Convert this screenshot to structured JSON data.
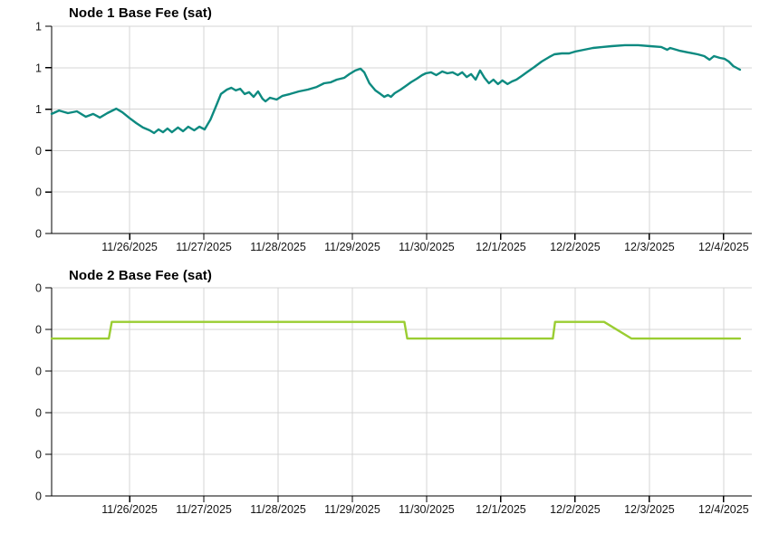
{
  "page": {
    "background": "#ffffff"
  },
  "colors": {
    "axis": "#000000",
    "grid": "#d4d4d4",
    "node1_line": "#0d8a80",
    "node2_line": "#9acd32"
  },
  "chart_data": [
    {
      "type": "line",
      "title": "Node 1 Base Fee (sat)",
      "legend": "none",
      "grid": "on",
      "x_axis": {
        "range": [
          -0.05,
          9.38
        ],
        "unit": "days (0 = 11/25/2025)",
        "tick_positions": [
          1,
          2,
          3,
          4,
          5,
          6,
          7,
          8,
          9
        ],
        "tick_labels": [
          "11/26/2025",
          "11/27/2025",
          "11/28/2025",
          "11/29/2025",
          "11/30/2025",
          "12/1/2025",
          "12/2/2025",
          "12/3/2025",
          "12/4/2025"
        ]
      },
      "y_axis": {
        "range": [
          0,
          1.25
        ],
        "tick_values": [
          0,
          0.25,
          0.5,
          0.75,
          1.0,
          1.25
        ],
        "tick_labels": [
          "0",
          "0",
          "0",
          "1",
          "1",
          "1"
        ]
      },
      "series": [
        {
          "name": "Node 1 Base Fee",
          "color": "#0d8a80",
          "points": [
            [
              -0.05,
              0.721
            ],
            [
              0.05,
              0.742
            ],
            [
              0.17,
              0.726
            ],
            [
              0.29,
              0.737
            ],
            [
              0.41,
              0.704
            ],
            [
              0.51,
              0.721
            ],
            [
              0.6,
              0.699
            ],
            [
              0.7,
              0.726
            ],
            [
              0.82,
              0.753
            ],
            [
              0.9,
              0.732
            ],
            [
              0.99,
              0.699
            ],
            [
              1.09,
              0.666
            ],
            [
              1.18,
              0.639
            ],
            [
              1.27,
              0.622
            ],
            [
              1.33,
              0.606
            ],
            [
              1.39,
              0.628
            ],
            [
              1.45,
              0.611
            ],
            [
              1.51,
              0.633
            ],
            [
              1.57,
              0.611
            ],
            [
              1.65,
              0.639
            ],
            [
              1.72,
              0.617
            ],
            [
              1.79,
              0.644
            ],
            [
              1.87,
              0.622
            ],
            [
              1.94,
              0.644
            ],
            [
              2.01,
              0.628
            ],
            [
              2.09,
              0.688
            ],
            [
              2.16,
              0.764
            ],
            [
              2.23,
              0.841
            ],
            [
              2.31,
              0.868
            ],
            [
              2.37,
              0.879
            ],
            [
              2.43,
              0.863
            ],
            [
              2.49,
              0.873
            ],
            [
              2.55,
              0.841
            ],
            [
              2.61,
              0.852
            ],
            [
              2.67,
              0.824
            ],
            [
              2.73,
              0.857
            ],
            [
              2.79,
              0.813
            ],
            [
              2.83,
              0.797
            ],
            [
              2.89,
              0.819
            ],
            [
              2.98,
              0.808
            ],
            [
              3.06,
              0.83
            ],
            [
              3.16,
              0.841
            ],
            [
              3.28,
              0.857
            ],
            [
              3.4,
              0.868
            ],
            [
              3.52,
              0.884
            ],
            [
              3.62,
              0.906
            ],
            [
              3.71,
              0.912
            ],
            [
              3.79,
              0.928
            ],
            [
              3.89,
              0.939
            ],
            [
              3.96,
              0.961
            ],
            [
              4.04,
              0.983
            ],
            [
              4.11,
              0.994
            ],
            [
              4.16,
              0.972
            ],
            [
              4.23,
              0.906
            ],
            [
              4.31,
              0.863
            ],
            [
              4.38,
              0.841
            ],
            [
              4.43,
              0.824
            ],
            [
              4.48,
              0.835
            ],
            [
              4.52,
              0.824
            ],
            [
              4.57,
              0.846
            ],
            [
              4.65,
              0.868
            ],
            [
              4.72,
              0.89
            ],
            [
              4.79,
              0.912
            ],
            [
              4.87,
              0.934
            ],
            [
              4.94,
              0.955
            ],
            [
              4.99,
              0.966
            ],
            [
              5.06,
              0.972
            ],
            [
              5.13,
              0.955
            ],
            [
              5.21,
              0.977
            ],
            [
              5.28,
              0.966
            ],
            [
              5.35,
              0.972
            ],
            [
              5.42,
              0.955
            ],
            [
              5.48,
              0.972
            ],
            [
              5.54,
              0.944
            ],
            [
              5.6,
              0.961
            ],
            [
              5.66,
              0.928
            ],
            [
              5.72,
              0.983
            ],
            [
              5.78,
              0.939
            ],
            [
              5.84,
              0.906
            ],
            [
              5.9,
              0.928
            ],
            [
              5.96,
              0.901
            ],
            [
              6.02,
              0.923
            ],
            [
              6.09,
              0.901
            ],
            [
              6.15,
              0.917
            ],
            [
              6.21,
              0.928
            ],
            [
              6.28,
              0.95
            ],
            [
              6.35,
              0.972
            ],
            [
              6.45,
              1.004
            ],
            [
              6.55,
              1.037
            ],
            [
              6.65,
              1.064
            ],
            [
              6.72,
              1.081
            ],
            [
              6.82,
              1.086
            ],
            [
              6.92,
              1.086
            ],
            [
              7.0,
              1.097
            ],
            [
              7.12,
              1.108
            ],
            [
              7.24,
              1.119
            ],
            [
              7.37,
              1.125
            ],
            [
              7.49,
              1.13
            ],
            [
              7.67,
              1.136
            ],
            [
              7.85,
              1.136
            ],
            [
              8.01,
              1.13
            ],
            [
              8.16,
              1.125
            ],
            [
              8.24,
              1.108
            ],
            [
              8.28,
              1.119
            ],
            [
              8.4,
              1.103
            ],
            [
              8.52,
              1.092
            ],
            [
              8.65,
              1.081
            ],
            [
              8.74,
              1.07
            ],
            [
              8.81,
              1.048
            ],
            [
              8.87,
              1.07
            ],
            [
              8.95,
              1.059
            ],
            [
              9.01,
              1.054
            ],
            [
              9.07,
              1.037
            ],
            [
              9.13,
              1.01
            ],
            [
              9.22,
              0.988
            ]
          ]
        }
      ]
    },
    {
      "type": "line",
      "title": "Node 2 Base Fee (sat)",
      "legend": "none",
      "grid": "on",
      "x_axis": {
        "range": [
          -0.05,
          9.38
        ],
        "unit": "days (0 = 11/25/2025)",
        "tick_positions": [
          1,
          2,
          3,
          4,
          5,
          6,
          7,
          8,
          9
        ],
        "tick_labels": [
          "11/26/2025",
          "11/27/2025",
          "11/28/2025",
          "11/29/2025",
          "11/30/2025",
          "12/1/2025",
          "12/2/2025",
          "12/3/2025",
          "12/4/2025"
        ]
      },
      "y_axis": {
        "range": [
          0,
          0.25
        ],
        "tick_values": [
          0,
          0.05,
          0.1,
          0.15,
          0.2,
          0.25
        ],
        "tick_labels": [
          "0",
          "0",
          "0",
          "0",
          "0",
          "0"
        ]
      },
      "series": [
        {
          "name": "Node 2 Base Fee",
          "color": "#9acd32",
          "points": [
            [
              -0.05,
              0.189
            ],
            [
              0.72,
              0.189
            ],
            [
              0.76,
              0.209
            ],
            [
              4.7,
              0.209
            ],
            [
              4.74,
              0.189
            ],
            [
              6.7,
              0.189
            ],
            [
              6.73,
              0.209
            ],
            [
              7.39,
              0.209
            ],
            [
              7.76,
              0.189
            ],
            [
              9.22,
              0.189
            ]
          ]
        }
      ]
    }
  ]
}
